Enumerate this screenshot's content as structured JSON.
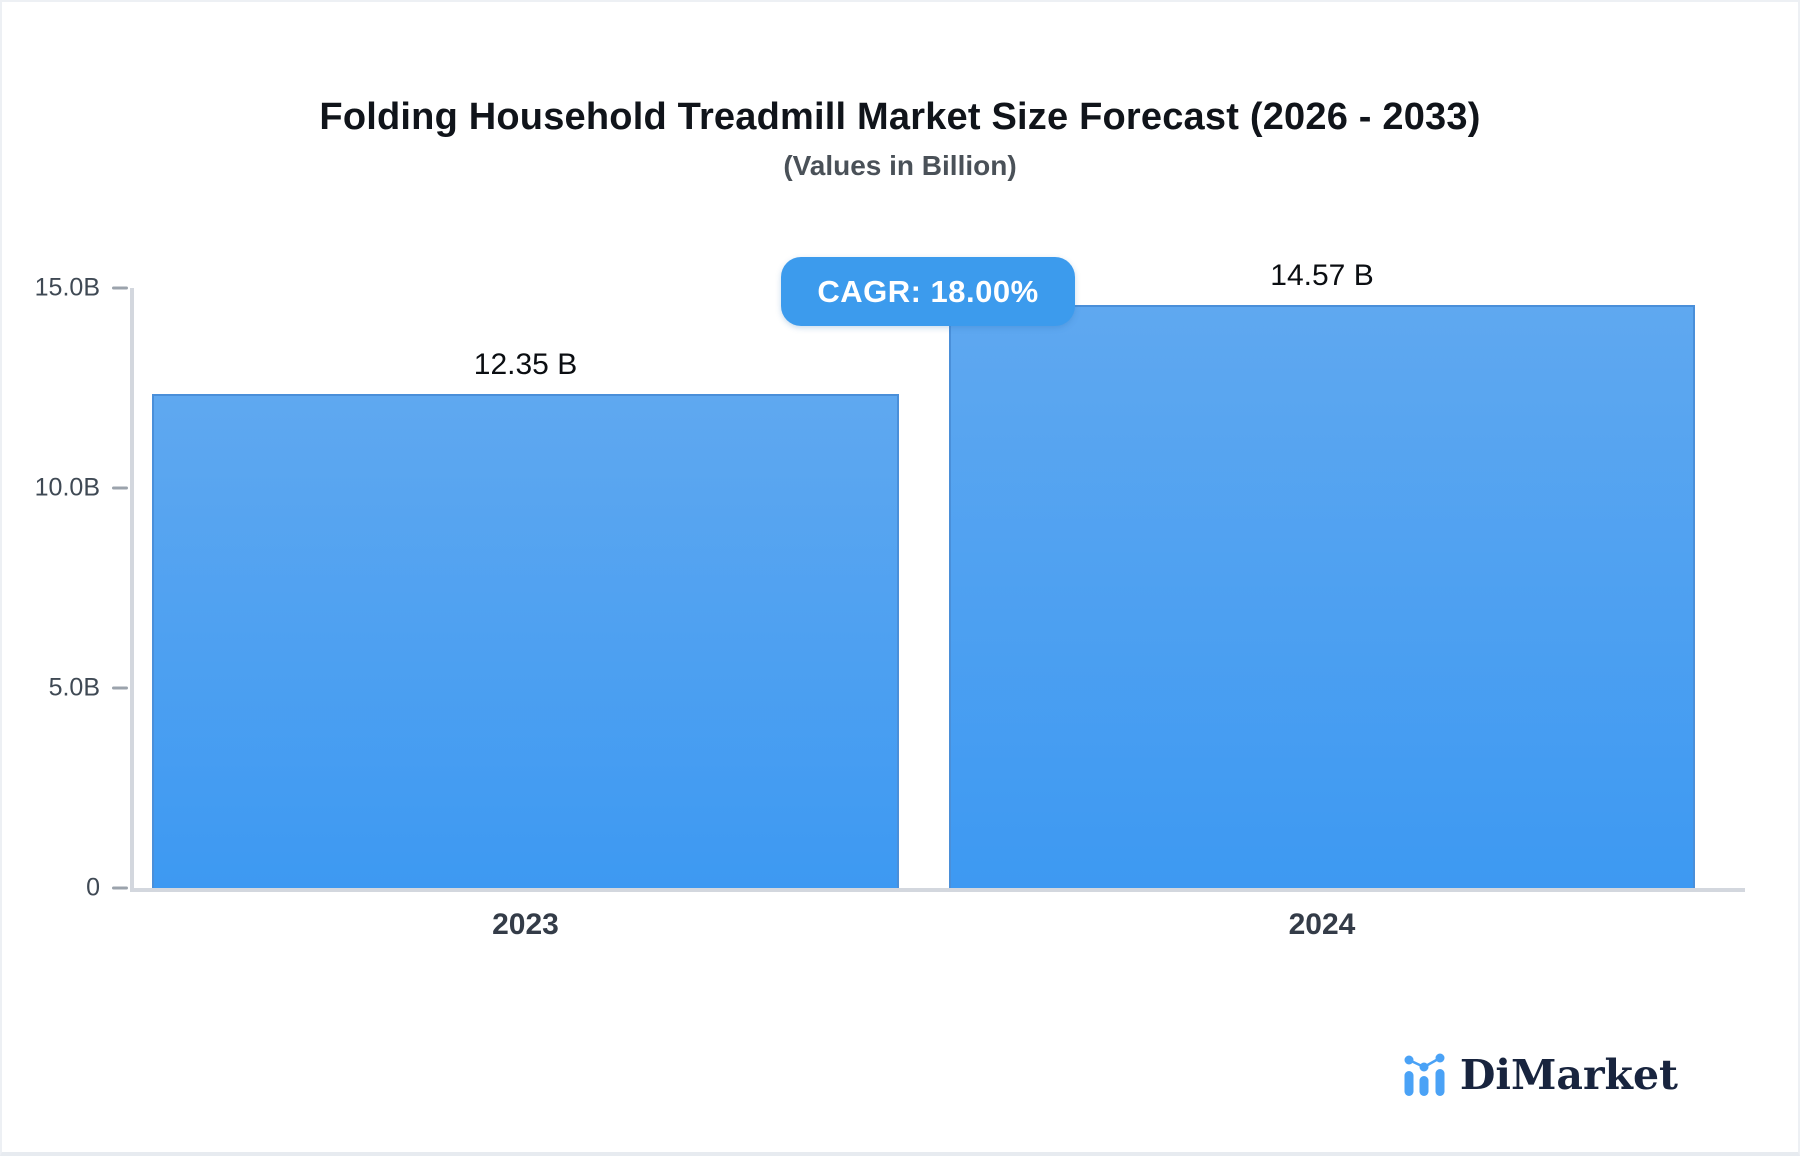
{
  "chart_data": {
    "type": "bar",
    "title": "Folding Household Treadmill Market Size Forecast (2026 - 2033)",
    "subtitle": "(Values in Billion)",
    "cagr_label": "CAGR: 18.00%",
    "categories": [
      "2023",
      "2024"
    ],
    "values": [
      12.35,
      14.57
    ],
    "value_labels": [
      "12.35 B",
      "14.57 B"
    ],
    "ylim": [
      0,
      15
    ],
    "yticks": [
      {
        "value": 0,
        "label": "0"
      },
      {
        "value": 5,
        "label": "5.0B"
      },
      {
        "value": 10,
        "label": "10.0B"
      },
      {
        "value": 15,
        "label": "15.0B"
      }
    ],
    "grid": false,
    "legend": "none",
    "colors": {
      "accent_blue": "#3c9bed",
      "bar_top": "#5fa8f0",
      "bar_bottom": "#3d99f2",
      "bar_border": "#4a8fd9",
      "axis_line": "#d3d7de",
      "tick": "#9ba3ac",
      "logo_navy": "#18243e",
      "logo_blue": "#4aa2f6"
    }
  },
  "branding": {
    "logo_text": "DiMarket"
  }
}
